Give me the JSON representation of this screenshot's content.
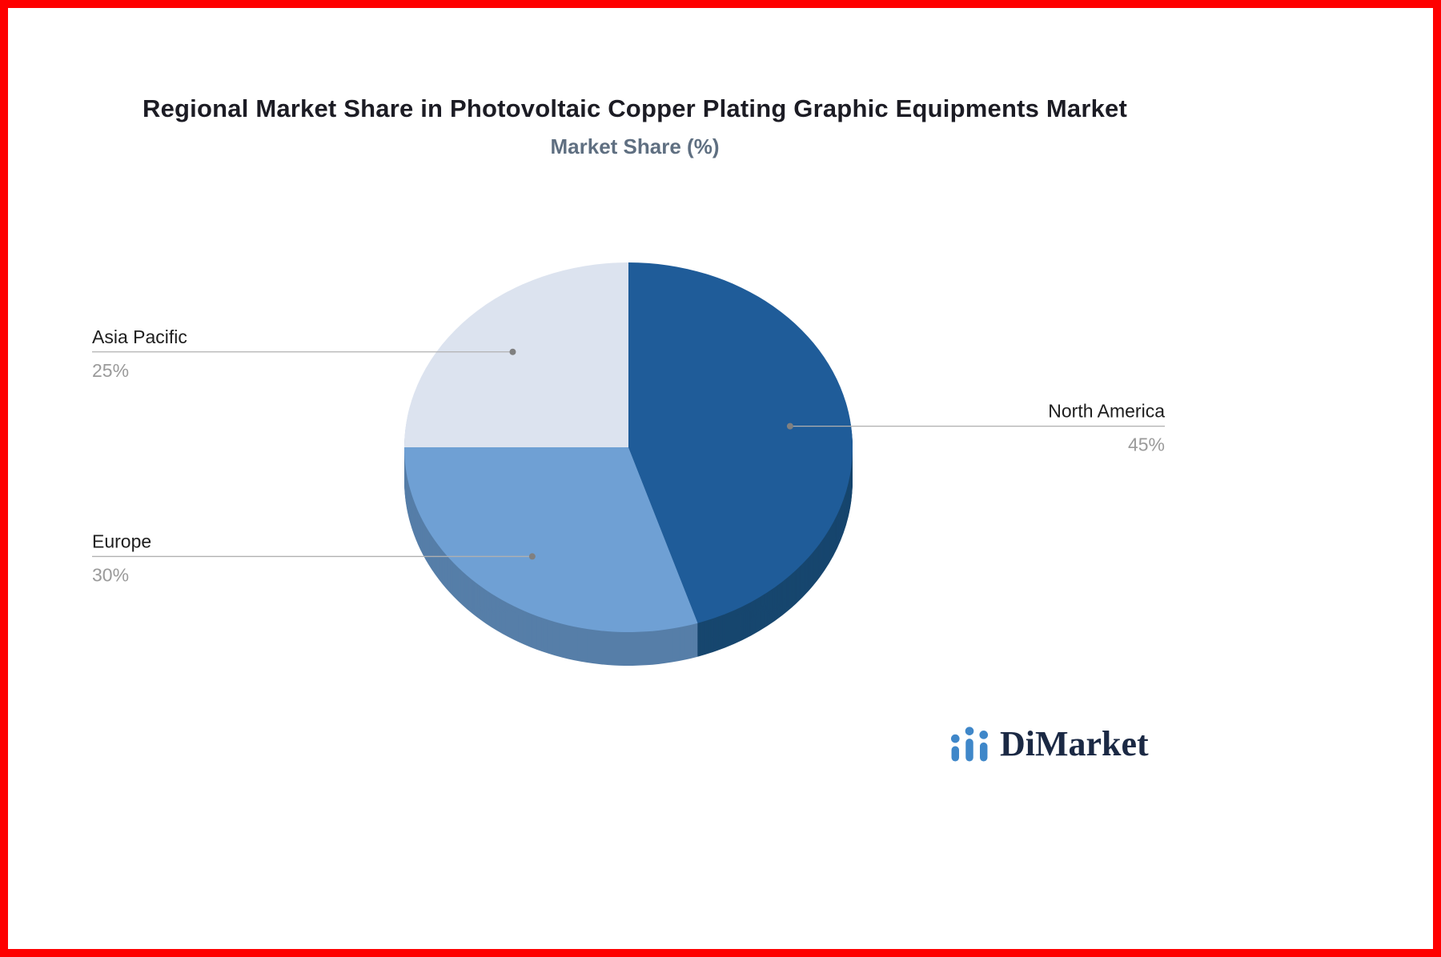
{
  "page": {
    "border_color": "#fe0000",
    "background_color": "#ffffff"
  },
  "header": {
    "title": "Regional Market Share in Photovoltaic Copper Plating Graphic Equipments Market",
    "subtitle": "Market Share (%)"
  },
  "chart_data": {
    "type": "pie",
    "title": "Regional Market Share in Photovoltaic Copper Plating Graphic Equipments Market",
    "subtitle": "Market Share (%)",
    "unit": "%",
    "labels": [
      "North America",
      "Europe",
      "Asia Pacific"
    ],
    "values": [
      45,
      30,
      25
    ],
    "colors": [
      "#1F5C99",
      "#6FA0D4",
      "#DCE3EF"
    ],
    "rim_colors": [
      "#17466E",
      "#567EA8",
      "#B9C3D6"
    ],
    "start_angle_deg": 0,
    "direction": "clockwise",
    "style": "3d",
    "legend": "none",
    "label_text_color": "#1e1e1e",
    "value_text_color": "#9a9a9a",
    "leader_line_color": "#b0b0b0",
    "leader_dot_color": "#808080"
  },
  "logo": {
    "text": "DiMarket",
    "icon": "bar-chart-icon",
    "text_color": "#1b2944",
    "icon_color": "#3F87C9"
  }
}
